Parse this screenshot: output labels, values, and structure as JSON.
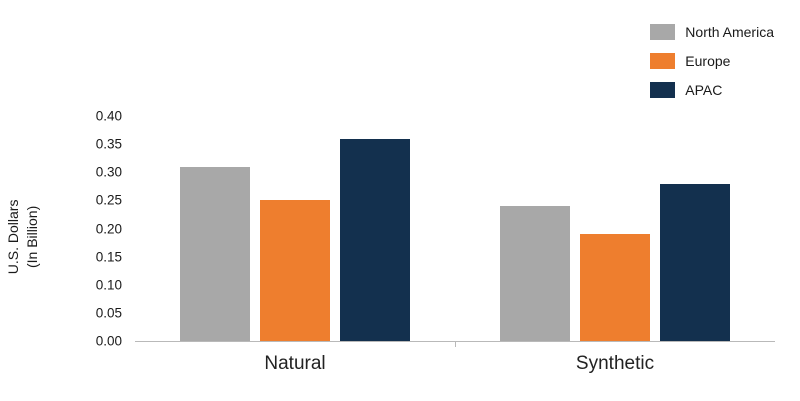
{
  "chart_data": {
    "type": "bar",
    "title": "",
    "categories": [
      "Natural",
      "Synthetic"
    ],
    "series": [
      {
        "name": "North America",
        "color": "#a8a8a8",
        "values": [
          0.31,
          0.24
        ]
      },
      {
        "name": "Europe",
        "color": "#ee7e2e",
        "values": [
          0.25,
          0.19
        ]
      },
      {
        "name": "APAC",
        "color": "#13304e",
        "values": [
          0.36,
          0.28
        ]
      }
    ],
    "ylabel_line1": "U.S. Dollars",
    "ylabel_line2": "(In Billion)",
    "ylim": [
      0,
      0.4
    ],
    "yticks": [
      "0.00",
      "0.05",
      "0.10",
      "0.15",
      "0.20",
      "0.25",
      "0.30",
      "0.35",
      "0.40"
    ],
    "legend_position": "top-right",
    "grid": false
  }
}
